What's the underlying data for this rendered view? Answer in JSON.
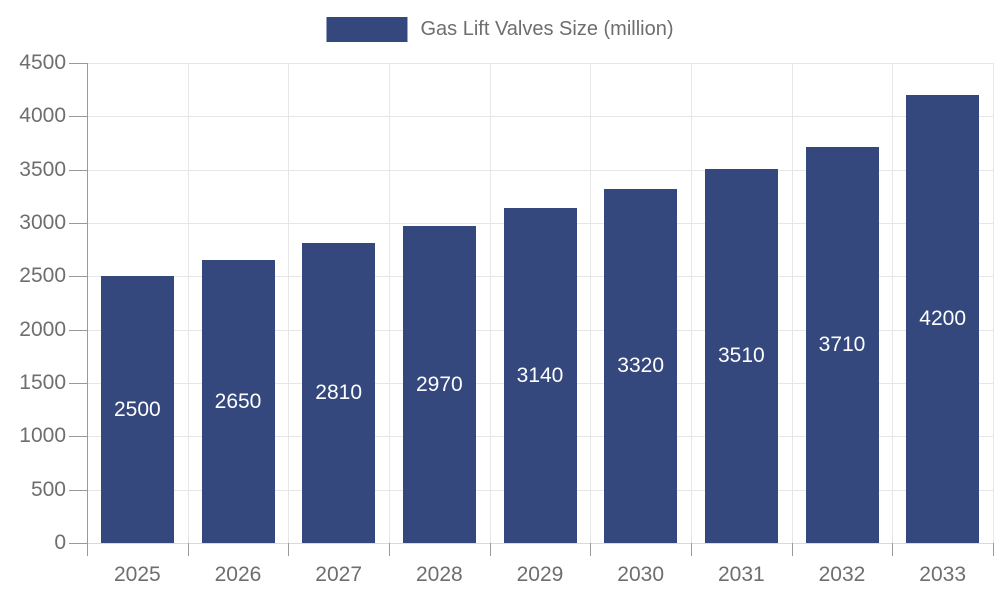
{
  "legend": {
    "label": "Gas Lift Valves Size (million)"
  },
  "colors": {
    "bar": "#35487E",
    "grid": "#E6E6E6",
    "zeroline": "#D9D9D9",
    "axis": "#999999",
    "tick_text": "#6E6E6E",
    "bar_label": "#FFFFFF",
    "background": "#FFFFFF"
  },
  "chart_data": {
    "type": "bar",
    "title": "",
    "xlabel": "",
    "ylabel": "",
    "categories": [
      "2025",
      "2026",
      "2027",
      "2028",
      "2029",
      "2030",
      "2031",
      "2032",
      "2033"
    ],
    "series": [
      {
        "name": "Gas Lift Valves Size (million)",
        "values": [
          2500,
          2650,
          2810,
          2970,
          3140,
          3320,
          3510,
          3710,
          4200
        ]
      }
    ],
    "yticks": [
      0,
      500,
      1000,
      1500,
      2000,
      2500,
      3000,
      3500,
      4000,
      4500
    ],
    "ylim": [
      0,
      4500
    ],
    "grid": true,
    "legend_position": "top-center",
    "bar_value_labels": "inside-center"
  }
}
